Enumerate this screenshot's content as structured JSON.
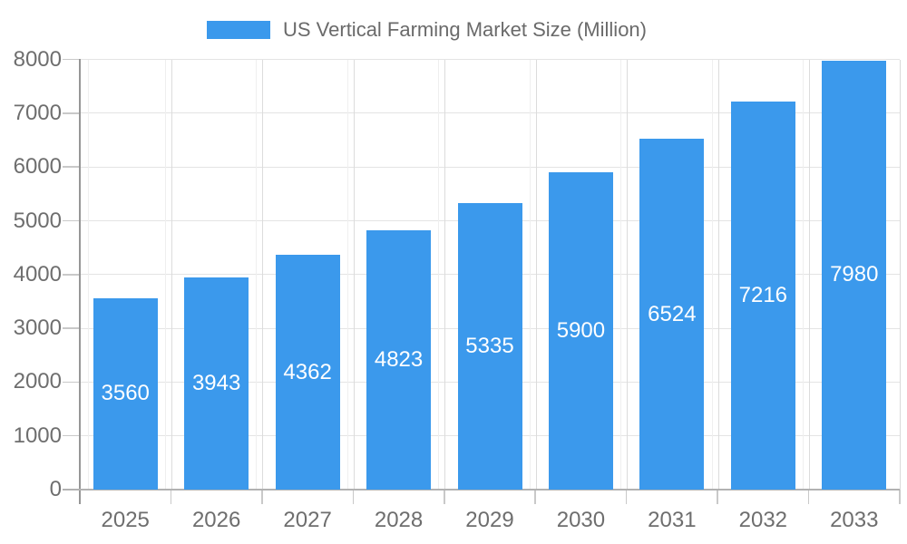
{
  "chart_data": {
    "type": "bar",
    "title": "US Vertical Farming Market Size (Million)",
    "categories": [
      "2025",
      "2026",
      "2027",
      "2028",
      "2029",
      "2030",
      "2031",
      "2032",
      "2033"
    ],
    "series": [
      {
        "name": "US Vertical Farming Market Size (Million)",
        "values": [
          3560,
          3943,
          4362,
          4823,
          5335,
          5900,
          6524,
          7216,
          7980
        ]
      }
    ],
    "data_labels": [
      "3560",
      "3943",
      "4362",
      "4823",
      "5335",
      "5900",
      "6524",
      "7216",
      "7980"
    ],
    "xlabel": "",
    "ylabel": "",
    "ylim": [
      0,
      8000
    ],
    "ytick_step": 1000,
    "yticks": [
      0,
      1000,
      2000,
      3000,
      4000,
      5000,
      6000,
      7000,
      8000
    ],
    "grid": true,
    "legend_position": "top-center",
    "colors": {
      "bar": "#3b99ec",
      "bar_label_text": "#ffffff",
      "axis_text": "#6e6e6e",
      "legend_text": "#6a6a6a",
      "gridline": "#e4e4e4",
      "vgrid_light": "#efefef",
      "vgrid_dark": "#dcdcdc",
      "axis_line": "#969696",
      "baseline": "#b2b2b2",
      "tick": "#c9c9c9"
    }
  }
}
